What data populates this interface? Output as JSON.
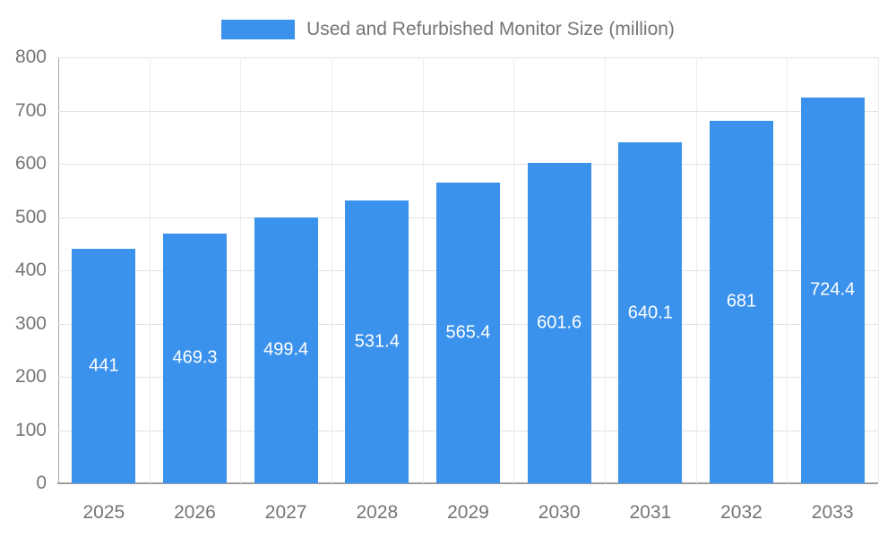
{
  "chart_data": {
    "type": "bar",
    "title": "Used and Refurbished Monitor Size (million)",
    "categories": [
      "2025",
      "2026",
      "2027",
      "2028",
      "2029",
      "2030",
      "2031",
      "2032",
      "2033"
    ],
    "values": [
      441,
      469.3,
      499.4,
      531.4,
      565.4,
      601.6,
      640.1,
      681,
      724.4
    ],
    "value_labels": [
      "441",
      "469.3",
      "499.4",
      "531.4",
      "565.4",
      "601.6",
      "640.1",
      "681",
      "724.4"
    ],
    "xlabel": "",
    "ylabel": "",
    "ylim": [
      0,
      800
    ],
    "ytick_step": 100,
    "bar_color": "#3B92EC",
    "value_label_color": "#ffffff",
    "grid": true,
    "legend_position": "top"
  }
}
